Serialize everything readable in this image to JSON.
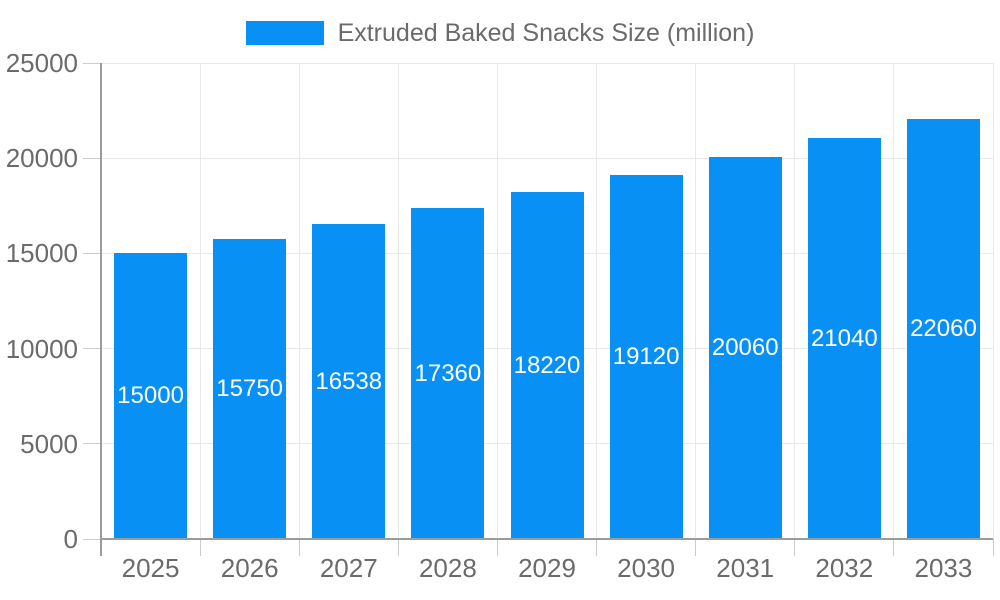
{
  "chart_data": {
    "type": "bar",
    "title": "Extruded Baked Snacks Size (million)",
    "categories": [
      "2025",
      "2026",
      "2027",
      "2028",
      "2029",
      "2030",
      "2031",
      "2032",
      "2033"
    ],
    "values": [
      15000,
      15750,
      16538,
      17360,
      18220,
      19120,
      20060,
      21040,
      22060
    ],
    "bar_labels": [
      "15000",
      "15750",
      "16538",
      "17360",
      "18220",
      "19120",
      "20060",
      "21040",
      "22060"
    ],
    "xlabel": "",
    "ylabel": "",
    "ylim": [
      0,
      25000
    ],
    "ytick_step": 5000,
    "ytick_labels": [
      "0",
      "5000",
      "10000",
      "15000",
      "20000",
      "25000"
    ],
    "legend_position": "top",
    "grid": true,
    "value_label_position": "centered-inside-bar",
    "colors": {
      "bar": "#0890F5",
      "bar_label": "#FFFFFF",
      "axis_text": "#6B6B6B",
      "axis_line": "#9B9B9B",
      "gridline": "#E9E9E9",
      "tick": "#CCCCCC",
      "background": "#FFFFFF"
    }
  }
}
